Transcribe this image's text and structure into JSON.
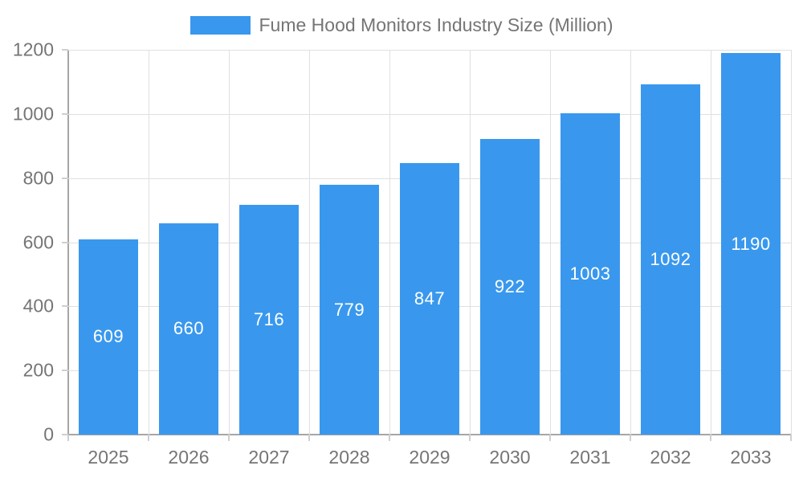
{
  "chart_data": {
    "type": "bar",
    "title": "Fume Hood Monitors Industry Size (Million)",
    "legend_label": "Fume Hood Monitors Industry Size (Million)",
    "legend_position": "top-center",
    "categories": [
      "2025",
      "2026",
      "2027",
      "2028",
      "2029",
      "2030",
      "2031",
      "2032",
      "2033"
    ],
    "values": [
      609,
      660,
      716,
      779,
      847,
      922,
      1003,
      1092,
      1190
    ],
    "xlabel": "",
    "ylabel": "",
    "ylim": [
      0,
      1200
    ],
    "y_ticks": [
      0,
      200,
      400,
      600,
      800,
      1000,
      1200
    ],
    "grid": "on",
    "value_labels_inside_bars": true,
    "colors": {
      "bar": "#3998ED",
      "value_label": "#FFFFFF",
      "axis_text": "#757575",
      "axis_line": "#A6A6A6",
      "gridline": "#E0E0E0",
      "tick": "#CFCFCF",
      "background": "#FFFFFF"
    }
  }
}
